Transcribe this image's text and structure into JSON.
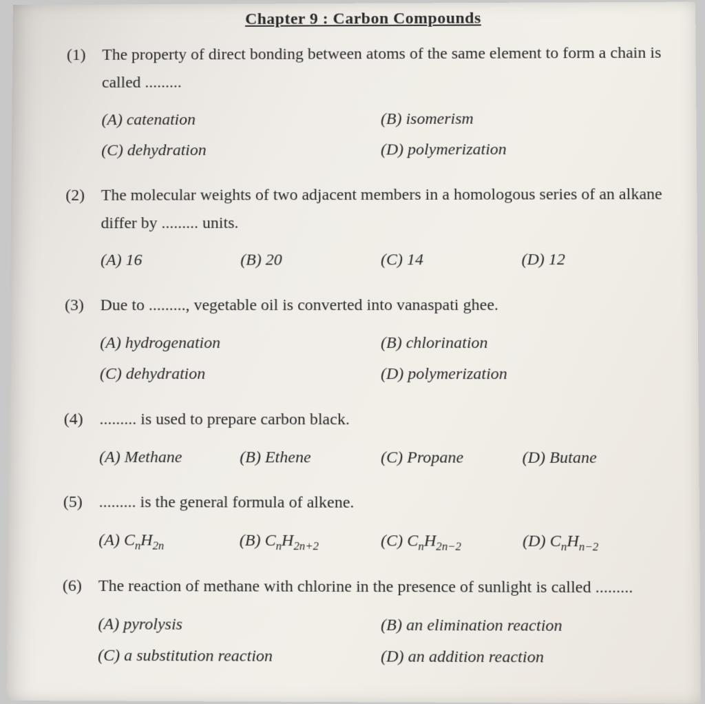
{
  "chapter_title": "Chapter 9 : Carbon Compounds",
  "questions": [
    {
      "num": "(1)",
      "text": "The property of direct bonding between atoms of the same element to form a chain is called .........",
      "layout": "two-col",
      "options": [
        {
          "label": "(A)",
          "text": "catenation"
        },
        {
          "label": "(B)",
          "text": "isomerism"
        },
        {
          "label": "(C)",
          "text": "dehydration"
        },
        {
          "label": "(D)",
          "text": "polymerization"
        }
      ]
    },
    {
      "num": "(2)",
      "text": "The molecular weights of two adjacent members in a homologous series of an alkane differ by ......... units.",
      "layout": "four-col",
      "options": [
        {
          "label": "(A)",
          "text": "16"
        },
        {
          "label": "(B)",
          "text": "20"
        },
        {
          "label": "(C)",
          "text": "14"
        },
        {
          "label": "(D)",
          "text": "12"
        }
      ]
    },
    {
      "num": "(3)",
      "text": "Due to ........., vegetable oil is converted into vanaspati ghee.",
      "layout": "two-col",
      "options": [
        {
          "label": "(A)",
          "text": "hydrogenation"
        },
        {
          "label": "(B)",
          "text": "chlorination"
        },
        {
          "label": "(C)",
          "text": "dehydration"
        },
        {
          "label": "(D)",
          "text": "polymerization"
        }
      ]
    },
    {
      "num": "(4)",
      "text": "......... is used to prepare carbon black.",
      "layout": "four-col",
      "options": [
        {
          "label": "(A)",
          "text": "Methane"
        },
        {
          "label": "(B)",
          "text": "Ethene"
        },
        {
          "label": "(C)",
          "text": "Propane"
        },
        {
          "label": "(D)",
          "text": "Butane"
        }
      ]
    },
    {
      "num": "(5)",
      "text": "......... is the general formula of alkene.",
      "layout": "four-col",
      "options": [
        {
          "label": "(A)",
          "html": "C<span class=\"sub\">n</span>H<span class=\"sub\">2n</span>"
        },
        {
          "label": "(B)",
          "html": "C<span class=\"sub\">n</span>H<span class=\"sub\">2n+2</span>"
        },
        {
          "label": "(C)",
          "html": "C<span class=\"sub\">n</span>H<span class=\"sub\">2n−2</span>"
        },
        {
          "label": "(D)",
          "html": "C<span class=\"sub\">n</span>H<span class=\"sub\">n−2</span>"
        }
      ]
    },
    {
      "num": "(6)",
      "text": "The reaction of methane with chlorine in the presence of sunlight is called .........",
      "layout": "two-col",
      "options": [
        {
          "label": "(A)",
          "text": "pyrolysis"
        },
        {
          "label": "(B)",
          "text": "an elimination reaction"
        },
        {
          "label": "(C)",
          "text": "a substitution reaction"
        },
        {
          "label": "(D)",
          "text": "an addition reaction"
        }
      ]
    }
  ]
}
